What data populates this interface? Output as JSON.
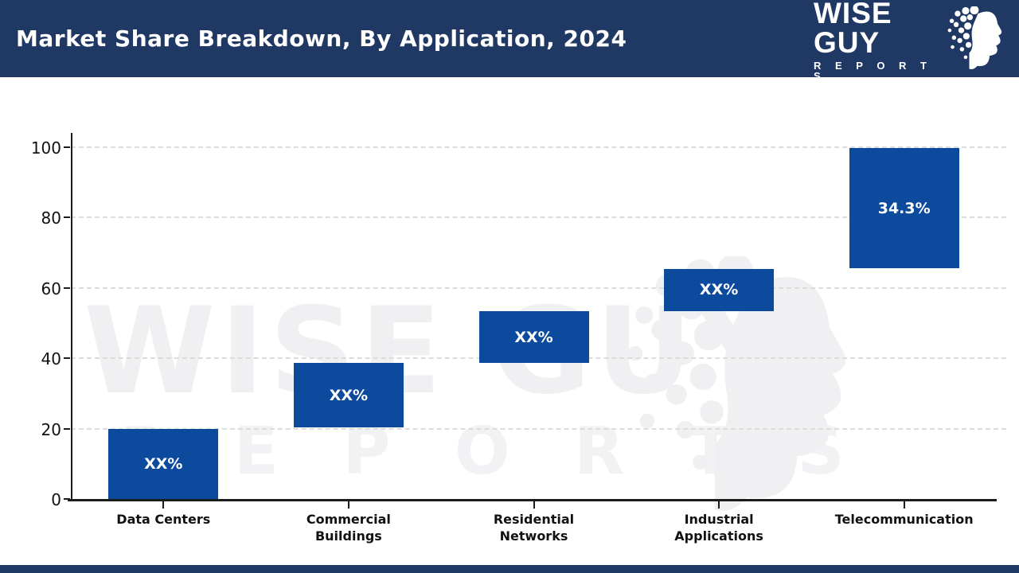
{
  "header": {
    "title": "Market Share Breakdown, By Application, 2024",
    "background_color": "#203864"
  },
  "logo": {
    "wordmark": "WISE GUY",
    "reports_text": "R E P O R T S",
    "head_icon": "dotted-head-profile-icon"
  },
  "watermark": {
    "line1": "WISE GUY",
    "line2": "R E P O R T S"
  },
  "chart_data": {
    "type": "bar",
    "subtype": "floating-waterfall",
    "title": "Market Share Breakdown, By Application, 2024",
    "xlabel": "",
    "ylabel": "",
    "ylim": [
      0,
      100
    ],
    "yticks": [
      0,
      20,
      40,
      60,
      80,
      100
    ],
    "grid": "horizontal-dashed",
    "legend": "none",
    "bar_color": "#0c4a9e",
    "value_label_color": "#ffffff",
    "categories": [
      "Data Centers",
      "Commercial Buildings",
      "Residential Networks",
      "Industrial Applications",
      "Telecommunication"
    ],
    "segments": [
      {
        "category": "Data Centers",
        "category_lines": [
          "Data Centers"
        ],
        "start": 0,
        "end": 20,
        "value_label": "XX%"
      },
      {
        "category": "Commercial Buildings",
        "category_lines": [
          "Commercial",
          "Buildings"
        ],
        "start": 20.3,
        "end": 38.6,
        "value_label": "XX%"
      },
      {
        "category": "Residential Networks",
        "category_lines": [
          "Residential",
          "Networks"
        ],
        "start": 38.7,
        "end": 53.3,
        "value_label": "XX%"
      },
      {
        "category": "Industrial Applications",
        "category_lines": [
          "Industrial",
          "Applications"
        ],
        "start": 53.5,
        "end": 65.3,
        "value_label": "XX%"
      },
      {
        "category": "Telecommunication",
        "category_lines": [
          "Telecommunication"
        ],
        "start": 65.5,
        "end": 99.8,
        "value_label": "34.3%"
      }
    ]
  },
  "colors": {
    "header_bg": "#203864",
    "footer_bg": "#203864",
    "bar": "#0c4a9e",
    "gridline": "#dcdcdc",
    "axis": "#1c1c1c",
    "watermark": "#f0f0f2",
    "tick_text": "#111111"
  }
}
